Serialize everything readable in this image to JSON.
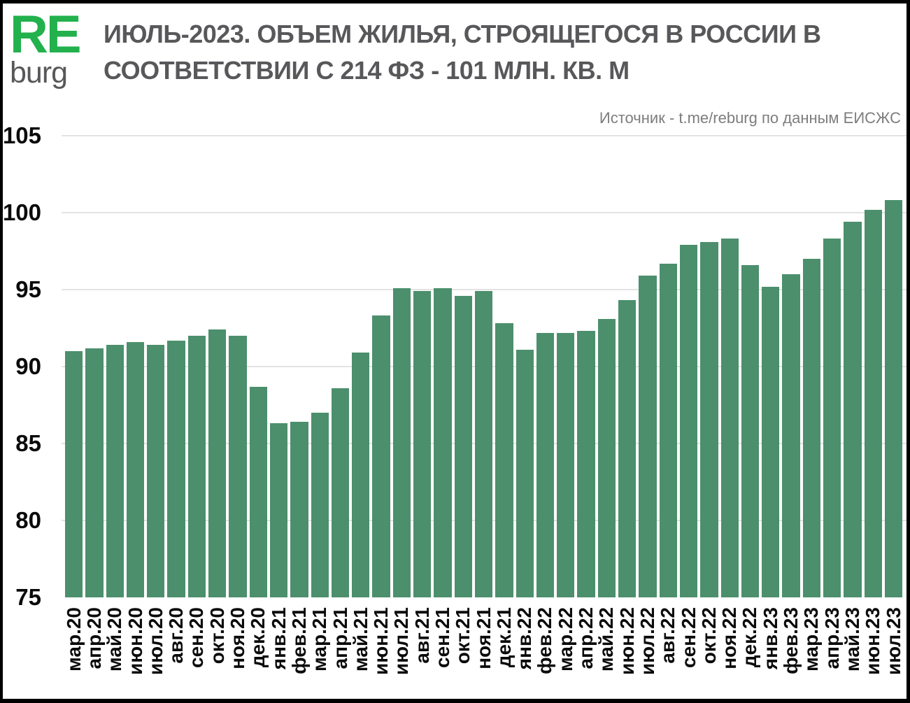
{
  "logo": {
    "top": "RE",
    "bottom": "burg"
  },
  "header": {
    "title_line1": "ИЮЛЬ-2023. ОБЪЕМ ЖИЛЬЯ, СТРОЯЩЕГОСЯ В РОССИИ В",
    "title_line2": "СООТВЕТСТВИИ С 214 ФЗ - 101 МЛН. КВ. М"
  },
  "source": "Источник - t.me/reburg по данным ЕИСЖС",
  "colors": {
    "bar": "#4c8f6d",
    "logo_green": "#22b14c",
    "text_gray": "#58585b",
    "source_gray": "#7d7d7d",
    "gridline": "#e3e3e3",
    "axis_text": "#0b0b0b"
  },
  "chart_data": {
    "type": "bar",
    "title": "ИЮЛЬ-2023. ОБЪЕМ ЖИЛЬЯ, СТРОЯЩЕГОСЯ В РОССИИ В СООТВЕТСТВИИ С 214 ФЗ - 101 МЛН. КВ. М",
    "unit": "млн. кв. м",
    "xlabel": "",
    "ylabel": "",
    "ylim": [
      75,
      105
    ],
    "yticks": [
      105,
      100,
      95,
      90,
      85,
      80,
      75
    ],
    "grid": "horizontal",
    "legend": "none",
    "categories": [
      "мар.20",
      "апр.20",
      "май.20",
      "июн.20",
      "июл.20",
      "авг.20",
      "сен.20",
      "окт.20",
      "ноя.20",
      "дек.20",
      "янв.21",
      "фев.21",
      "мар.21",
      "апр.21",
      "май.21",
      "июн.21",
      "июл.21",
      "авг.21",
      "сен.21",
      "окт.21",
      "ноя.21",
      "дек.21",
      "янв.22",
      "фев.22",
      "мар.22",
      "апр.22",
      "май.22",
      "июн.22",
      "июл.22",
      "авг.22",
      "сен.22",
      "окт.22",
      "ноя.22",
      "дек.22",
      "янв.23",
      "фев.23",
      "мар.23",
      "апр.23",
      "май.23",
      "июн.23",
      "июл.23"
    ],
    "values": [
      91.0,
      91.2,
      91.4,
      91.6,
      91.4,
      91.7,
      92.0,
      92.4,
      92.0,
      88.7,
      86.3,
      86.4,
      87.0,
      88.6,
      90.9,
      93.3,
      95.1,
      94.9,
      95.1,
      94.6,
      94.9,
      92.8,
      91.1,
      92.2,
      92.2,
      92.3,
      93.1,
      94.3,
      95.9,
      96.7,
      97.9,
      98.1,
      98.3,
      96.6,
      95.2,
      96.0,
      97.0,
      98.3,
      99.4,
      100.2,
      100.8
    ]
  }
}
